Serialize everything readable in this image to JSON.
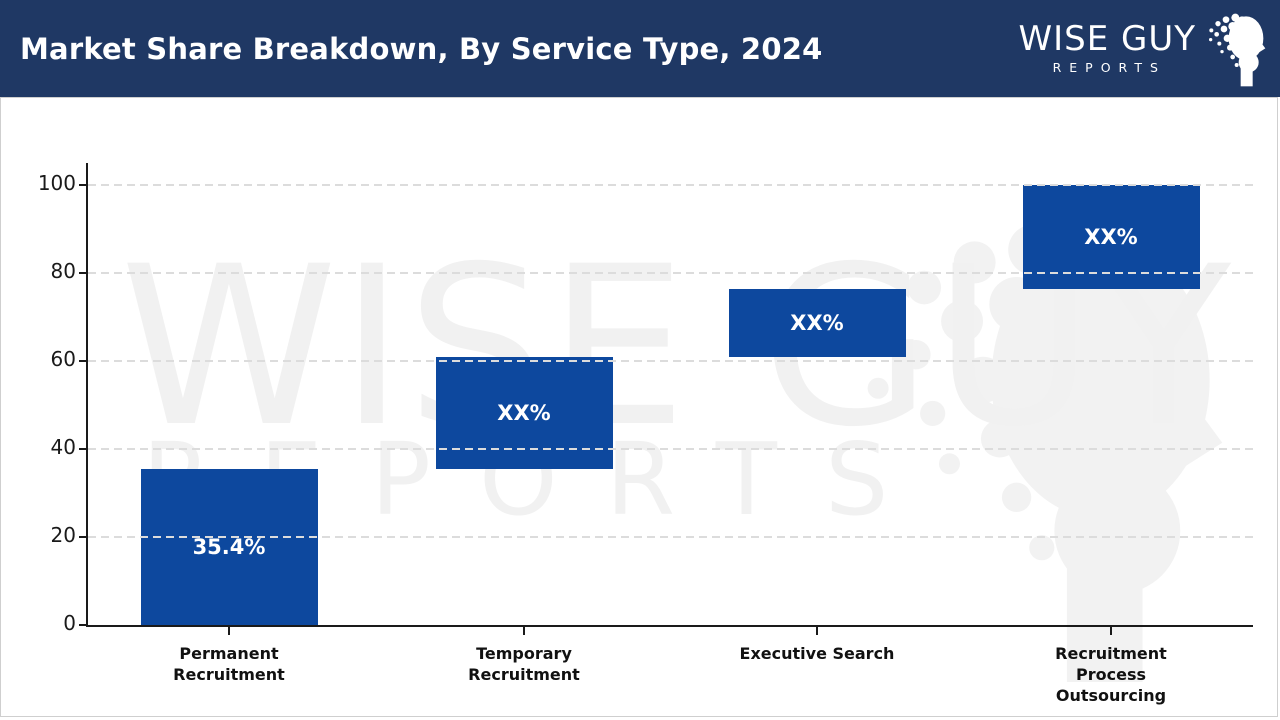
{
  "header": {
    "title": "Market Share Breakdown, By Service Type, 2024",
    "logo": {
      "name": "WISE GUY",
      "sub": "REPORTS"
    }
  },
  "watermark": {
    "name": "WISE GUY",
    "sub": "REPORTS"
  },
  "chart_data": {
    "type": "bar",
    "variant": "waterfall",
    "title": "Market Share Breakdown, By Service Type, 2024",
    "categories": [
      "Permanent\nRecruitment",
      "Temporary\nRecruitment",
      "Executive Search",
      "Recruitment\nProcess\nOutsourcing"
    ],
    "segments": [
      {
        "category": "Permanent Recruitment",
        "start": 0,
        "end": 35.4,
        "label": "35.4%"
      },
      {
        "category": "Temporary Recruitment",
        "start": 35.4,
        "end": 60.8,
        "label": "XX%"
      },
      {
        "category": "Executive Search",
        "start": 60.8,
        "end": 76.4,
        "label": "XX%"
      },
      {
        "category": "Recruitment Process Outsourcing",
        "start": 76.4,
        "end": 100,
        "label": "XX%"
      }
    ],
    "xlabel": "",
    "ylabel": "",
    "ylim": [
      0,
      100
    ],
    "yticks": [
      0,
      20,
      40,
      60,
      80,
      100
    ],
    "grid": "horizontal-dashed",
    "legend": "none",
    "bar_color": "#0d489e",
    "bar_label_color": "#ffffff",
    "axis_color": "#1a1a1a",
    "grid_color": "#dcdcdc",
    "header_color": "#1f3864"
  }
}
